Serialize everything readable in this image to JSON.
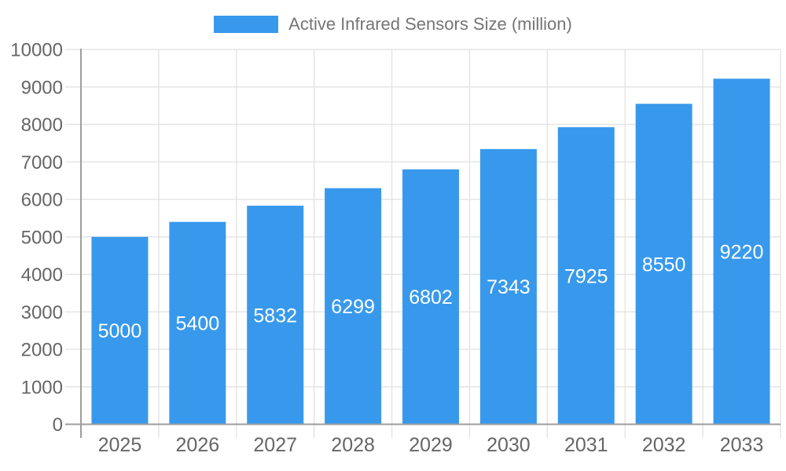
{
  "legend": {
    "label": "Active Infrared Sensors Size (million)"
  },
  "chart_data": {
    "type": "bar",
    "title": "Active Infrared Sensors Size (million)",
    "categories": [
      "2025",
      "2026",
      "2027",
      "2028",
      "2029",
      "2030",
      "2031",
      "2032",
      "2033"
    ],
    "values": [
      5000,
      5400,
      5832,
      6299,
      6802,
      7343,
      7925,
      8550,
      9220
    ],
    "xlabel": "",
    "ylabel": "",
    "ylim": [
      0,
      10000
    ],
    "ytick_step": 1000,
    "grid": true,
    "legend_position": "top",
    "value_labels": "inside-center-white",
    "colors": {
      "bar": "#3899EC",
      "grid": "#E5E5E5",
      "axis": "#9E9E9E",
      "tick_label": "#666666",
      "legend_text": "#757575",
      "value_label": "#FFFFFF"
    }
  }
}
